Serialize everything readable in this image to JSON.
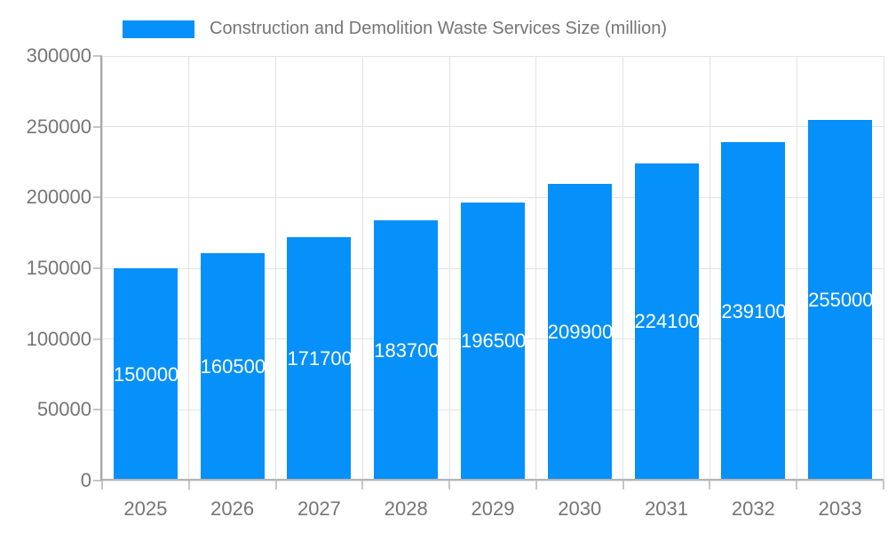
{
  "legend": {
    "series_label": "Construction and Demolition Waste Services Size (million)"
  },
  "chart_data": {
    "type": "bar",
    "title": "Construction and Demolition Waste Services Size (million)",
    "categories": [
      "2025",
      "2026",
      "2027",
      "2028",
      "2029",
      "2030",
      "2031",
      "2032",
      "2033"
    ],
    "values": [
      150000,
      160500,
      171700,
      183700,
      196500,
      209900,
      224100,
      239100,
      255000
    ],
    "xlabel": "",
    "ylabel": "",
    "ylim": [
      0,
      300000
    ],
    "yticks": [
      0,
      50000,
      100000,
      150000,
      200000,
      250000,
      300000
    ],
    "grid": true,
    "legend_position": "top-left",
    "bar_color": "#0690f9",
    "bar_label_color": "#ffffff",
    "axis_text_color": "#757575"
  }
}
